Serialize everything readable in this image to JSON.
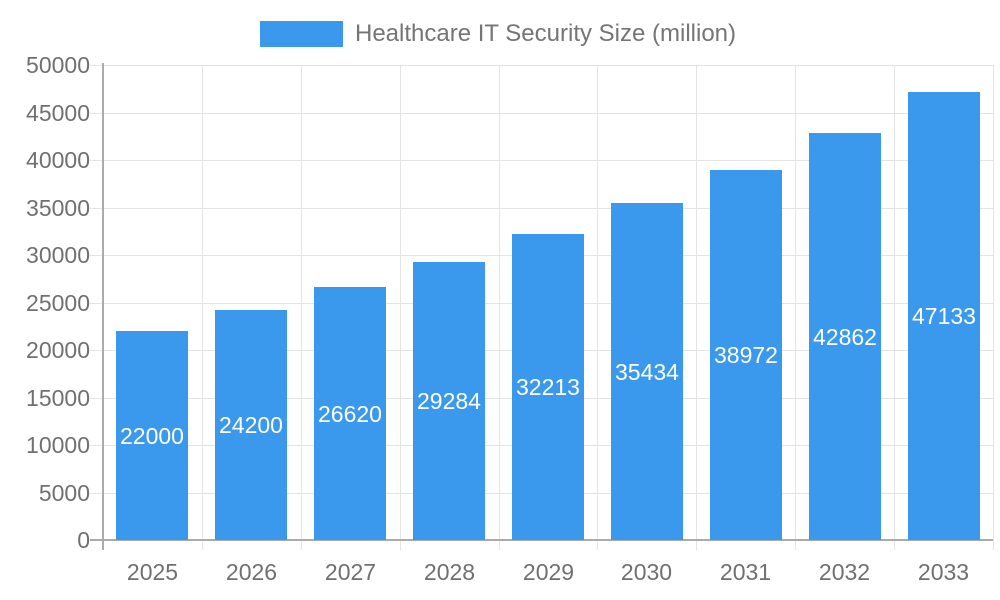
{
  "legend": {
    "label": "Healthcare IT Security Size (million)"
  },
  "colors": {
    "bar": "#3A99EC",
    "axis_line": "#ababab",
    "grid_line": "#e4e4e4",
    "axis_text": "#707070",
    "legend_text": "#757575",
    "value_label": "#ffffff",
    "background": "#ffffff"
  },
  "chart_data": {
    "type": "bar",
    "title": "",
    "xlabel": "",
    "ylabel": "",
    "categories": [
      "2025",
      "2026",
      "2027",
      "2028",
      "2029",
      "2030",
      "2031",
      "2032",
      "2033"
    ],
    "series": [
      {
        "name": "Healthcare IT Security Size (million)",
        "values": [
          22000,
          24200,
          26620,
          29284,
          32213,
          35434,
          38972,
          42862,
          47133
        ]
      }
    ],
    "value_labels_shown": true,
    "value_label_position": "inside-middle",
    "ylim": [
      0,
      50000
    ],
    "ytick_step": 5000,
    "ytick_labels": [
      "0",
      "5000",
      "10000",
      "15000",
      "20000",
      "25000",
      "30000",
      "35000",
      "40000",
      "45000",
      "50000"
    ],
    "grid": true,
    "grid_vertical": true,
    "legend_position": "top-center"
  }
}
